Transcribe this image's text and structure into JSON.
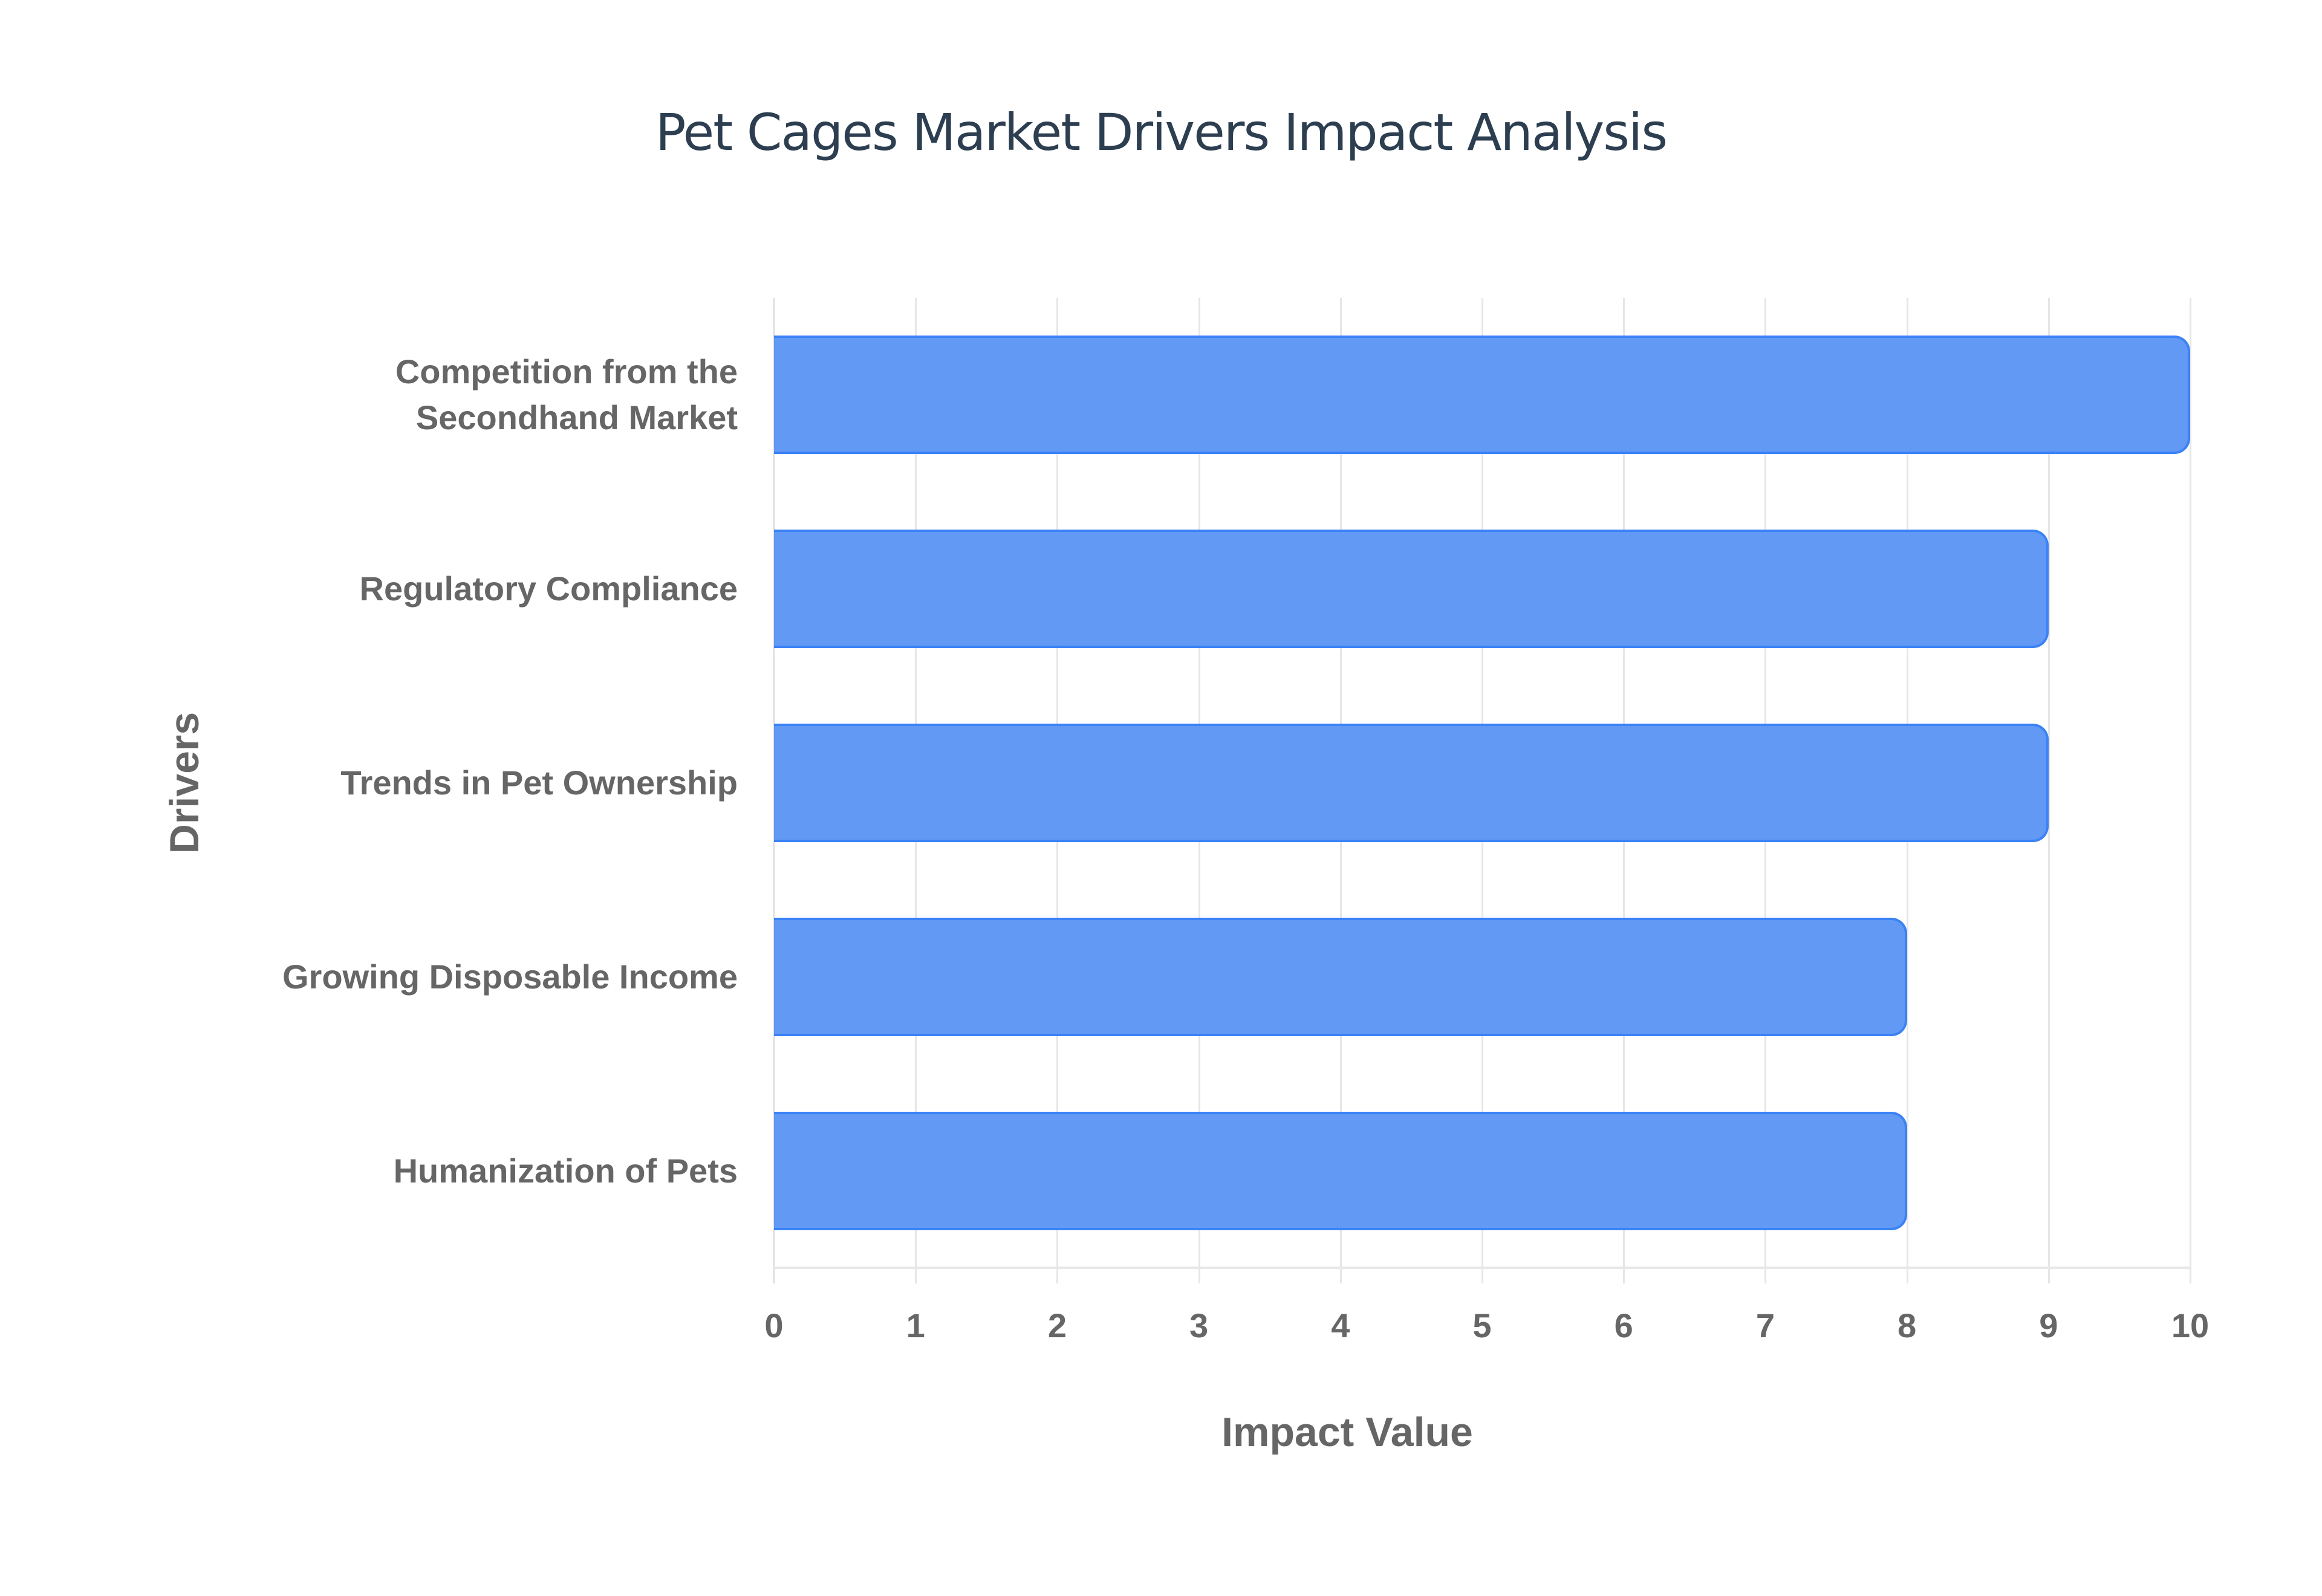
{
  "chart_data": {
    "type": "bar",
    "orientation": "horizontal",
    "title": "Pet Cages Market Drivers Impact Analysis",
    "xlabel": "Impact Value",
    "ylabel": "Drivers",
    "categories": [
      "Competition from the Secondhand Market",
      "Regulatory Compliance",
      "Trends in Pet Ownership",
      "Growing Disposable Income",
      "Humanization of Pets"
    ],
    "category_lines": [
      [
        "Competition from the",
        "Secondhand Market"
      ],
      [
        "Regulatory Compliance"
      ],
      [
        "Trends in Pet Ownership"
      ],
      [
        "Growing Disposable Income"
      ],
      [
        "Humanization of Pets"
      ]
    ],
    "values": [
      10,
      9,
      9,
      8,
      8
    ],
    "xlim": [
      0,
      10
    ],
    "xticks": [
      "0",
      "1",
      "2",
      "3",
      "4",
      "5",
      "6",
      "7",
      "8",
      "9",
      "10"
    ],
    "grid": true,
    "legend": null,
    "colors": {
      "bar_fill": "#6199f4",
      "bar_border": "#3b82f6",
      "title": "#2c3e50",
      "labels": "#666666",
      "grid": "#e6e6e6"
    }
  }
}
